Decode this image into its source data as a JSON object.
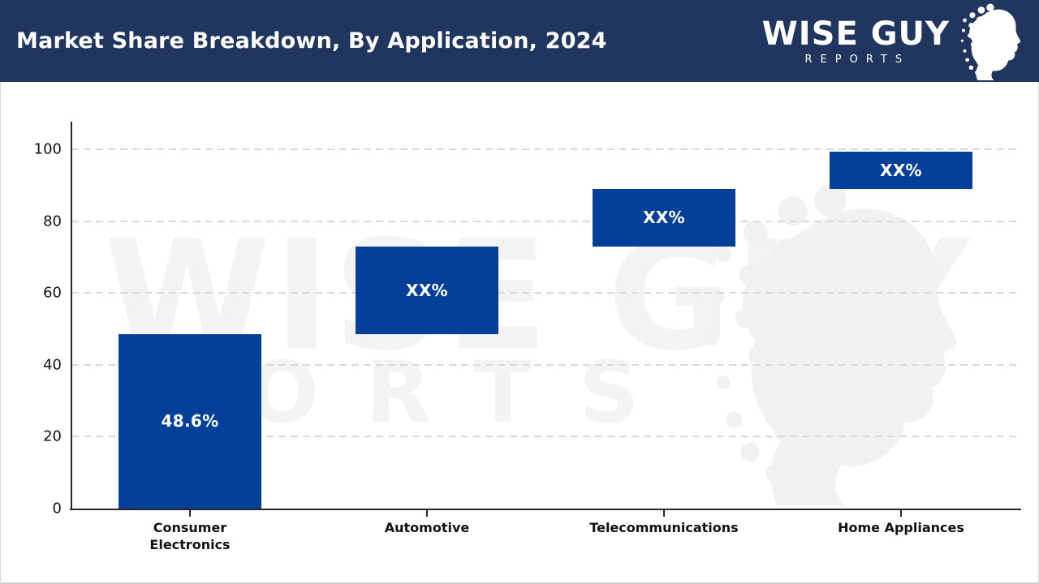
{
  "header": {
    "title": "Market Share Breakdown, By Application, 2024",
    "logo_line1": "WISE GUY",
    "logo_line2": "REPORTS"
  },
  "watermark": {
    "line1": "WISE GUY",
    "line2": "PORTS"
  },
  "colors": {
    "header_bg": "#21365f",
    "bar": "#04409A",
    "grid": "#d9d9d9",
    "axis": "#262626",
    "value_label": "#ffffff",
    "watermark": "#f3f3f3"
  },
  "chart_data": {
    "type": "bar",
    "subtype": "waterfall",
    "title": "Market Share Breakdown, By Application, 2024",
    "categories": [
      "Consumer\nElectronics",
      "Automotive",
      "Telecommunications",
      "Home Appliances"
    ],
    "segments": [
      {
        "category": "Consumer Electronics",
        "start": 0,
        "end": 48.6,
        "label": "48.6%"
      },
      {
        "category": "Automotive",
        "start": 48.6,
        "end": 73,
        "label": "XX%"
      },
      {
        "category": "Telecommunications",
        "start": 73,
        "end": 89,
        "label": "XX%"
      },
      {
        "category": "Home Appliances",
        "start": 89,
        "end": 99.3,
        "label": "XX%"
      }
    ],
    "yticks": [
      0,
      20,
      40,
      60,
      80,
      100
    ],
    "ylim": [
      0,
      105
    ],
    "grid": "horizontal-dashed",
    "legend": "none",
    "xlabel": "",
    "ylabel": ""
  }
}
